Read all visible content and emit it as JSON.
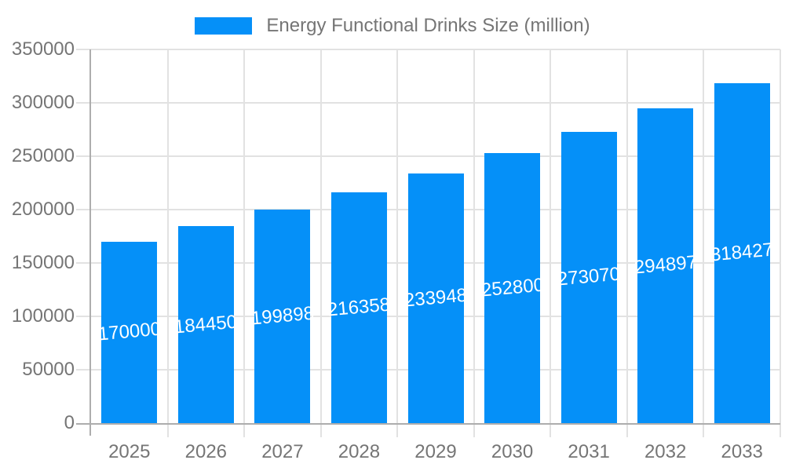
{
  "legend": {
    "label": "Energy Functional Drinks Size (million)",
    "swatch_color": "#0590F8"
  },
  "chart_data": {
    "type": "bar",
    "title": "",
    "categories": [
      "2025",
      "2026",
      "2027",
      "2028",
      "2029",
      "2030",
      "2031",
      "2032",
      "2033"
    ],
    "values": [
      170000,
      184450,
      199898,
      216358,
      233948,
      252800,
      273070,
      294897,
      318427
    ],
    "series": [
      {
        "name": "Energy Functional Drinks Size (million)",
        "values": [
          170000,
          184450,
          199898,
          216358,
          233948,
          252800,
          273070,
          294897,
          318427
        ]
      }
    ],
    "value_labels": [
      "170000",
      "184450",
      "199898",
      "216358",
      "233948",
      "252800",
      "273070",
      "294897",
      "318427"
    ],
    "xlabel": "",
    "ylabel": "",
    "ylim": [
      0,
      350000
    ],
    "yticks": [
      0,
      50000,
      100000,
      150000,
      200000,
      250000,
      300000,
      350000
    ],
    "ytick_labels": [
      "0",
      "50000",
      "100000",
      "150000",
      "200000",
      "250000",
      "300000",
      "350000"
    ],
    "grid": true,
    "legend_position": "top",
    "bar_color": "#0590F8",
    "value_label_color": "#ffffff",
    "axis_text_color": "#757575",
    "gridline_color": "#e2e2e2",
    "axis_line_color": "#adadad"
  }
}
